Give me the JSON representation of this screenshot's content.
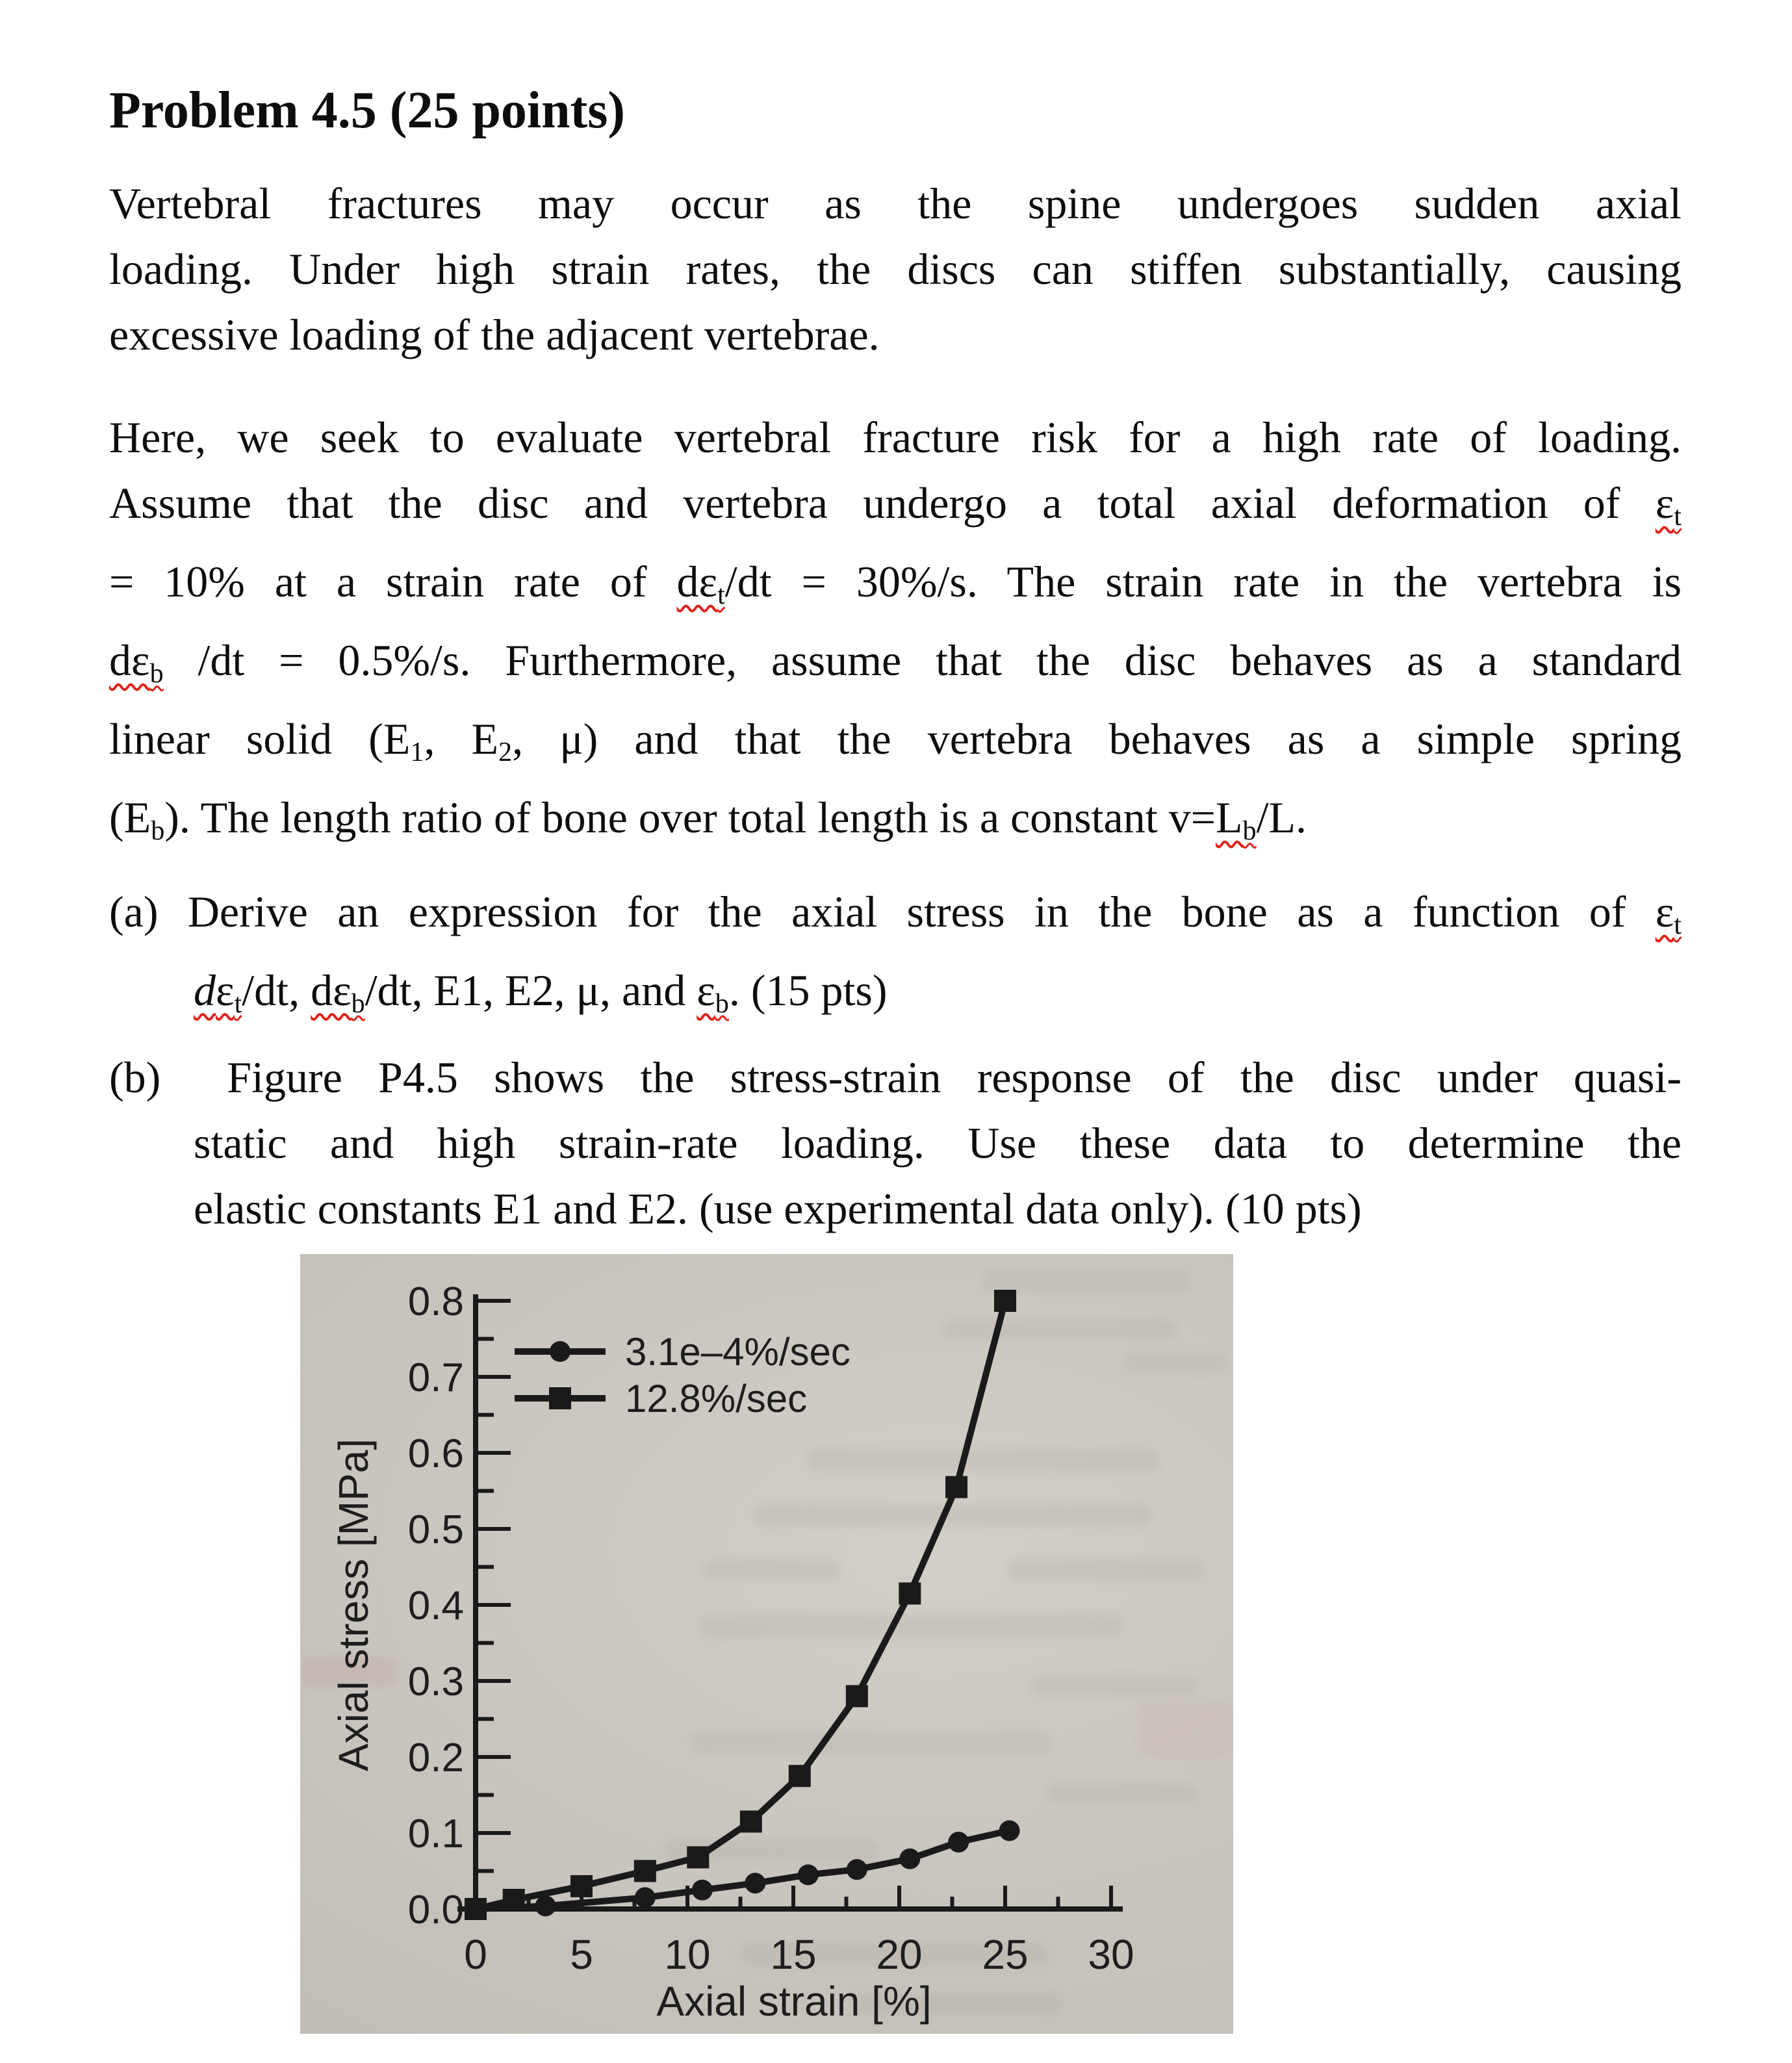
{
  "colors": {
    "page_bg": "#ffffff",
    "text": "#0d0d0d",
    "squiggle_red": "#e0231a",
    "photo_bg": "#cdc9c2",
    "chart_ink": "#1a1a1a"
  },
  "document": {
    "blocks": [
      {
        "name": "block-title",
        "indent": 0,
        "lines": [
          {
            "justify": false,
            "runs": [
              {
                "t": "Problem 4.5 (25 points)"
              }
            ]
          }
        ]
      },
      {
        "name": "para-intro",
        "indent": 0,
        "lines": [
          {
            "justify": true,
            "runs": [
              {
                "t": "Vertebral fractures may occur as the spine undergoes sudden axial"
              }
            ]
          },
          {
            "justify": true,
            "runs": [
              {
                "t": "loading. Under high strain rates, the discs can stiffen substantially, causing"
              }
            ]
          },
          {
            "justify": false,
            "runs": [
              {
                "t": "excessive loading of the adjacent vertebrae."
              }
            ]
          }
        ]
      },
      {
        "name": "para-setup",
        "indent": 0,
        "lines": [
          {
            "justify": true,
            "runs": [
              {
                "t": "Here, we seek to evaluate vertebral fracture risk for a high rate of loading."
              }
            ]
          },
          {
            "justify": true,
            "runs": [
              {
                "t": "Assume that the disc and vertebra undergo a total axial deformation of "
              },
              {
                "t": "ε",
                "sq": true
              },
              {
                "t": "t",
                "sub": true,
                "sq": true
              }
            ]
          },
          {
            "justify": true,
            "runs": [
              {
                "t": "= 10% at a strain rate of "
              },
              {
                "t": "dε",
                "sq": true
              },
              {
                "t": "t",
                "sub": true,
                "sq": true
              },
              {
                "t": "/dt = 30%/s. The strain rate in the vertebra is"
              }
            ]
          },
          {
            "justify": true,
            "runs": [
              {
                "t": "dε",
                "sq": true
              },
              {
                "t": "b",
                "sub": true,
                "sq": true
              },
              {
                "t": " /dt = 0.5%/s. Furthermore, assume that the disc behaves as a standard"
              }
            ]
          },
          {
            "justify": true,
            "runs": [
              {
                "t": "linear solid (E"
              },
              {
                "t": "1",
                "sub": true
              },
              {
                "t": ", E"
              },
              {
                "t": "2",
                "sub": true
              },
              {
                "t": ", μ) and that the vertebra behaves as a simple spring"
              }
            ]
          },
          {
            "justify": false,
            "runs": [
              {
                "t": "(E"
              },
              {
                "t": "b",
                "sub": true
              },
              {
                "t": "). The length ratio of bone over total length is a constant v="
              },
              {
                "t": "L",
                "sq": true
              },
              {
                "t": "b",
                "sub": true,
                "sq": true
              },
              {
                "t": "/L."
              }
            ]
          }
        ]
      },
      {
        "name": "item-a",
        "indent": 130,
        "lines": [
          {
            "justify": true,
            "runs": [
              {
                "t": "(a) Derive an expression for the axial stress in the bone as a function of "
              },
              {
                "t": "ε",
                "sq": true
              },
              {
                "t": "t",
                "sub": true,
                "sq": true
              }
            ]
          },
          {
            "justify": false,
            "runs": [
              {
                "t": "d",
                "i": true,
                "sq": true
              },
              {
                "t": "ε",
                "sq": true
              },
              {
                "t": "t",
                "sub": true,
                "sq": true
              },
              {
                "t": "/dt, "
              },
              {
                "t": "dε",
                "sq": true
              },
              {
                "t": "b",
                "sub": true,
                "sq": true
              },
              {
                "t": "/dt, E1, E2, μ, and "
              },
              {
                "t": "ε",
                "sq": true
              },
              {
                "t": "b",
                "sub": true,
                "sq": true
              },
              {
                "t": ". (15 pts)"
              }
            ]
          }
        ]
      },
      {
        "name": "item-b",
        "indent": 130,
        "lines": [
          {
            "justify": true,
            "runs": [
              {
                "t": "(b)  Figure P4.5 shows the stress-strain response of the disc under quasi-"
              }
            ]
          },
          {
            "justify": true,
            "runs": [
              {
                "t": "static and high strain-rate loading. Use these data to determine the"
              }
            ]
          },
          {
            "justify": false,
            "runs": [
              {
                "t": "elastic constants E1 and E2. (use experimental data only). (10 pts)"
              }
            ]
          }
        ]
      }
    ]
  },
  "chart_data": {
    "type": "line",
    "title": "",
    "xlabel": "Axial strain [%]",
    "ylabel": "Axial stress [MPa]",
    "xlim": [
      0,
      30
    ],
    "ylim": [
      0,
      0.8
    ],
    "grid": false,
    "legend_position": "upper-left-inside",
    "x_ticks_major": [
      0,
      5,
      10,
      15,
      20,
      25,
      30
    ],
    "x_ticks_minor": [
      2.5,
      7.5,
      12.5,
      17.5,
      22.5,
      27.5
    ],
    "y_ticks_major": [
      0.0,
      0.1,
      0.2,
      0.3,
      0.4,
      0.5,
      0.6,
      0.7,
      0.8
    ],
    "y_ticks_minor": [
      0.05,
      0.15,
      0.25,
      0.35,
      0.45,
      0.55,
      0.65,
      0.75
    ],
    "series": [
      {
        "name": "3.1e–4%/sec",
        "marker": "circle",
        "points": [
          [
            0,
            0
          ],
          [
            3.3,
            0.004
          ],
          [
            8,
            0.015
          ],
          [
            10.7,
            0.025
          ],
          [
            13.2,
            0.034
          ],
          [
            15.7,
            0.045
          ],
          [
            18,
            0.052
          ],
          [
            20.5,
            0.066
          ],
          [
            22.8,
            0.088
          ],
          [
            25.2,
            0.103
          ]
        ]
      },
      {
        "name": "12.8%/sec",
        "marker": "square",
        "points": [
          [
            0,
            0
          ],
          [
            1.8,
            0.012
          ],
          [
            5,
            0.03
          ],
          [
            8,
            0.05
          ],
          [
            10.5,
            0.068
          ],
          [
            13,
            0.115
          ],
          [
            15.3,
            0.175
          ],
          [
            18,
            0.28
          ],
          [
            20.5,
            0.415
          ],
          [
            22.7,
            0.555
          ],
          [
            25,
            0.8
          ]
        ]
      }
    ]
  }
}
